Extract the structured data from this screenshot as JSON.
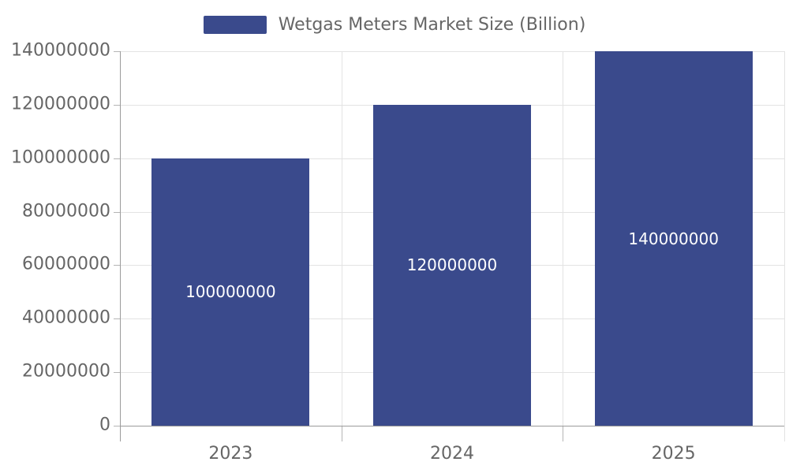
{
  "legend": {
    "label": "Wetgas Meters Market Size (Billion)"
  },
  "chart_data": {
    "type": "bar",
    "title": "Wetgas Meters Market Size (Billion)",
    "categories": [
      "2023",
      "2024",
      "2025"
    ],
    "values": [
      100000000,
      120000000,
      140000000
    ],
    "bar_labels": [
      "100000000",
      "120000000",
      "140000000"
    ],
    "xlabel": "",
    "ylabel": "",
    "ylim": [
      0,
      140000000
    ],
    "yticks": [
      0,
      20000000,
      40000000,
      60000000,
      80000000,
      100000000,
      120000000,
      140000000
    ],
    "ytick_labels": [
      "0",
      "20000000",
      "40000000",
      "60000000",
      "80000000",
      "100000000",
      "120000000",
      "140000000"
    ],
    "grid": true,
    "legend_position": "top-center",
    "bar_label_position": "middle"
  },
  "colors": {
    "bar": "#3A4A8C",
    "bar_label": "#FFFFFF",
    "axis_text": "#666666",
    "gridline": "#E3E3E3",
    "axis_line": "#9B9B9B",
    "background": "#FFFFFF"
  }
}
